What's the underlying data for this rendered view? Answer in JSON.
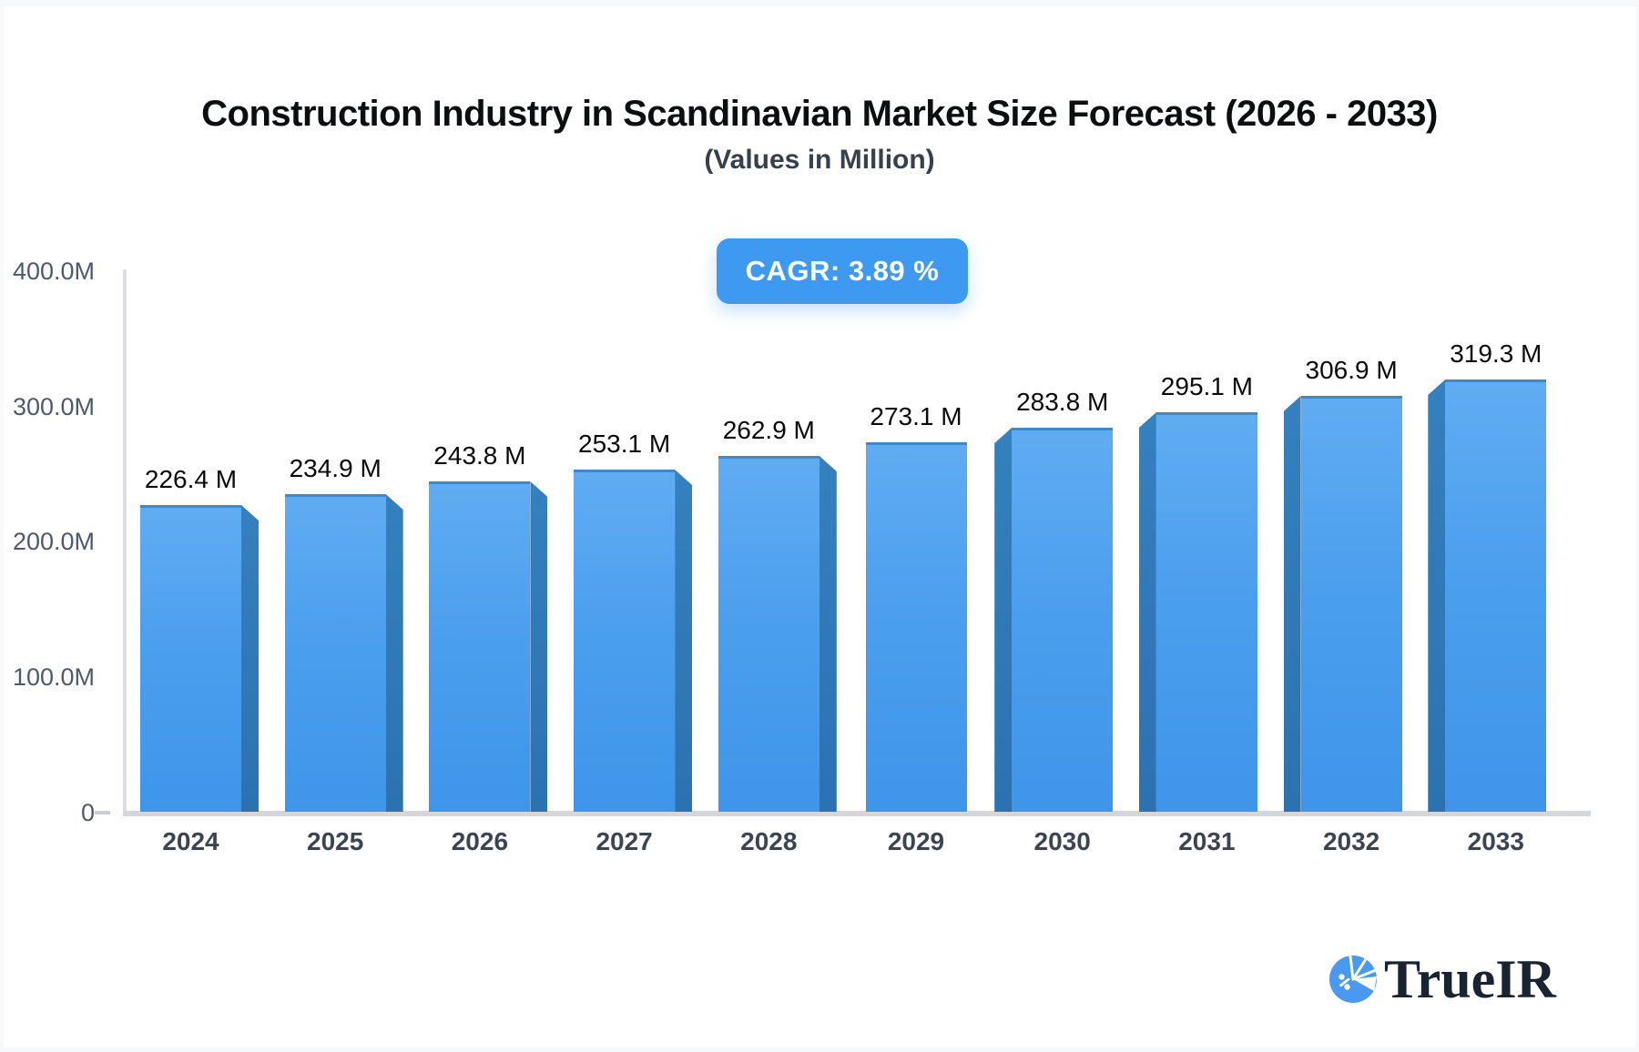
{
  "title": "Construction Industry in Scandinavian Market Size Forecast (2026 - 2033)",
  "subtitle": "(Values in Million)",
  "cagr_badge": {
    "label": "CAGR: 3.89 %",
    "background": "#3e9af0",
    "text_color": "#ffffff"
  },
  "brand": {
    "name": "TrueIR",
    "icon": "pie-chart-icon",
    "icon_color": "#4a99f0",
    "text_color": "#182430"
  },
  "colors": {
    "bar_face_top": "#60ACF2",
    "bar_face_bottom": "#3E95EA",
    "bar_side": "#2E76B4",
    "bar_top_edge": "#3F88C9",
    "axis_line": "#d3d7da",
    "y_label": "#4d5a6d",
    "x_label": "#3b4552",
    "value_label": "#0a0a0a"
  },
  "chart_data": {
    "type": "bar",
    "title": "Construction Industry in Scandinavian Market Size Forecast (2026 - 2033)",
    "subtitle": "(Values in Million)",
    "categories": [
      "2024",
      "2025",
      "2026",
      "2027",
      "2028",
      "2029",
      "2030",
      "2031",
      "2032",
      "2033"
    ],
    "values": [
      226.4,
      234.9,
      243.8,
      253.1,
      262.9,
      273.1,
      283.8,
      295.1,
      306.9,
      319.3
    ],
    "bar_labels": [
      "226.4 M",
      "234.9 M",
      "243.8 M",
      "253.1 M",
      "262.9 M",
      "273.1 M",
      "283.8 M",
      "295.1 M",
      "306.9 M",
      "319.3 M"
    ],
    "unit": "Million",
    "cagr": "3.89 %",
    "xlabel": "",
    "ylabel": "",
    "ylim": [
      0,
      400
    ],
    "y_tick_labels": [
      "400.0M",
      "300.0M",
      "200.0M",
      "100.0M",
      "0"
    ],
    "y_tick_values": [
      400,
      300,
      200,
      100,
      0
    ],
    "grid": false,
    "legend": false,
    "style": "3d-extruded-bars, perspective toward center"
  }
}
